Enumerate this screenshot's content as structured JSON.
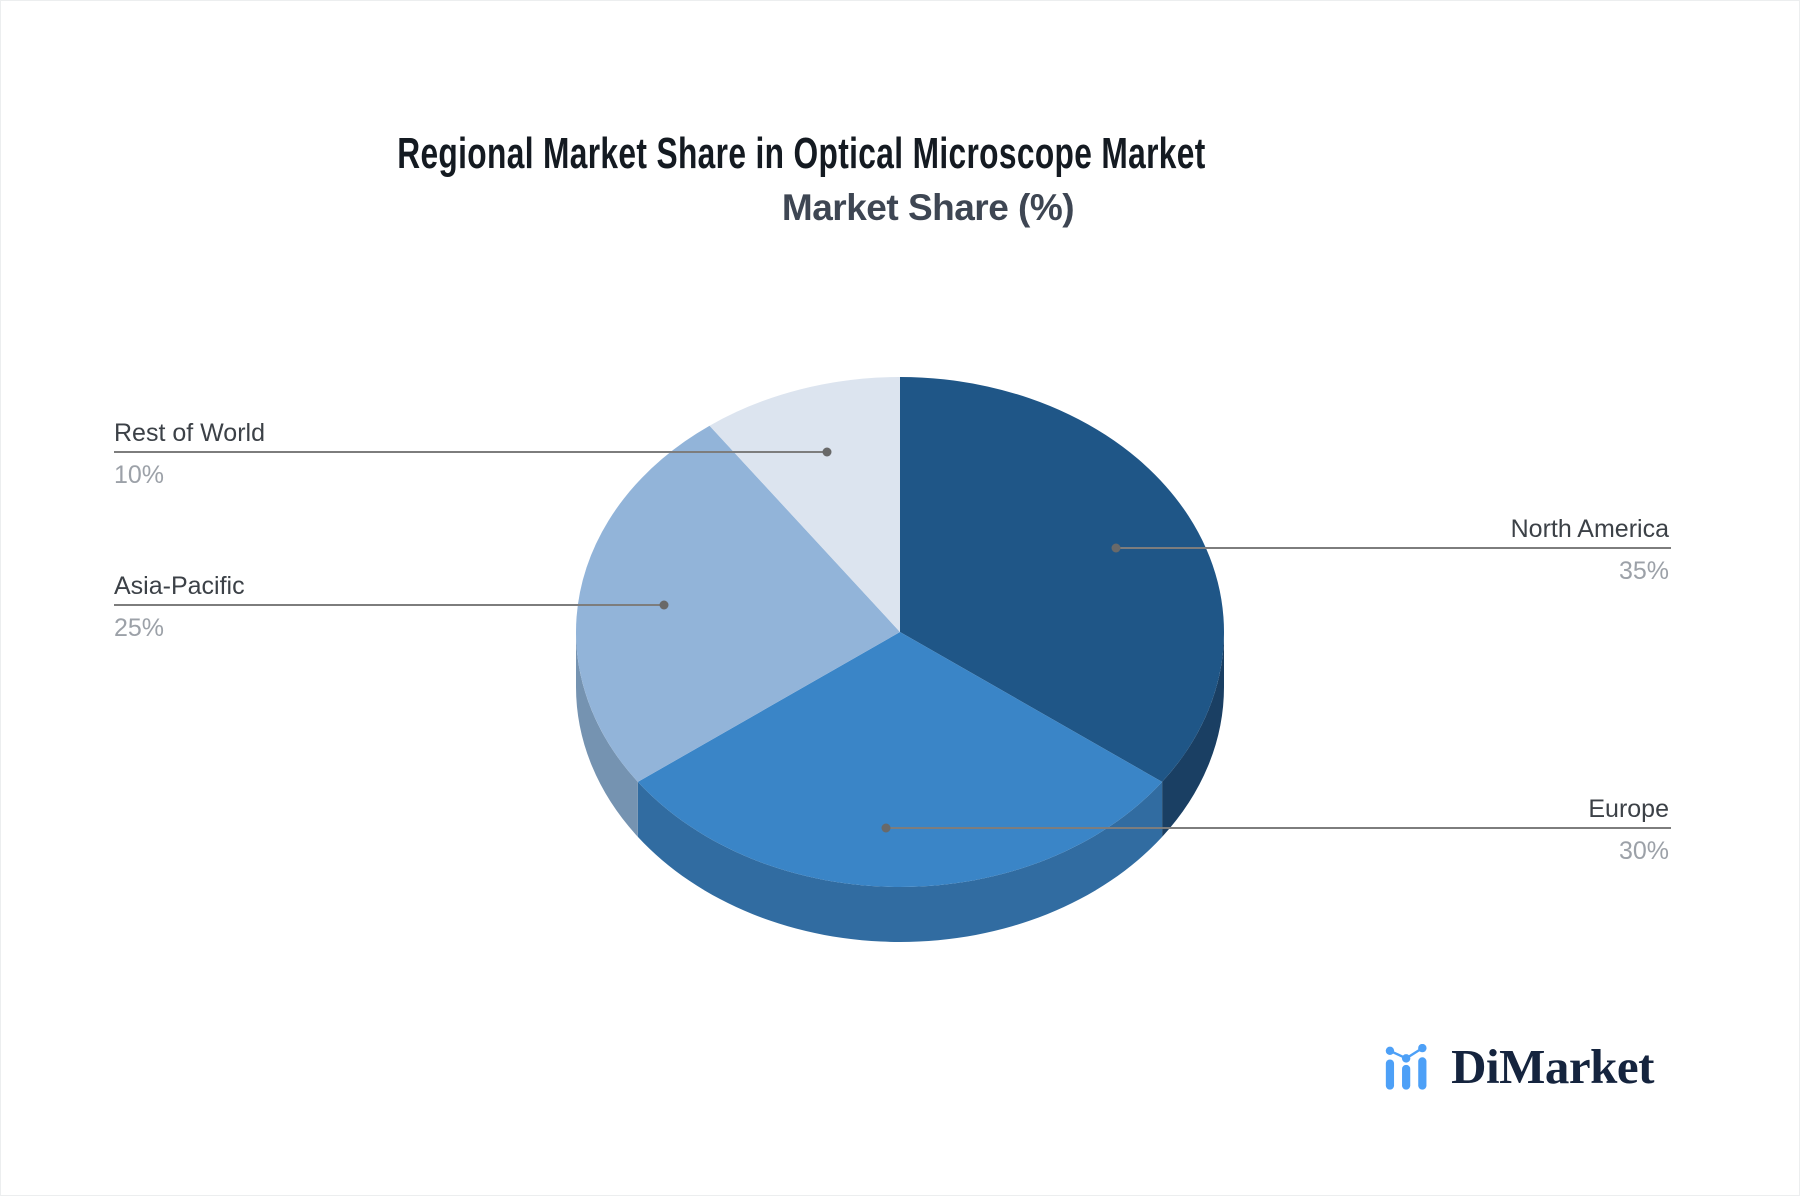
{
  "chart_data": {
    "type": "pie",
    "style": "3d",
    "title": "Regional Market Share in Optical Microscope Market",
    "subtitle": "Market Share (%)",
    "unit": "%",
    "start_angle_deg": 0,
    "direction": "clockwise",
    "legend_position": "callout-labels",
    "slices": [
      {
        "label": "North America",
        "value": 35,
        "pct_label": "35%",
        "color": "#1F5687",
        "side_color": "#1A3F63"
      },
      {
        "label": "Europe",
        "value": 30,
        "pct_label": "30%",
        "color": "#3A85C7",
        "side_color": "#316CA1"
      },
      {
        "label": "Asia-Pacific",
        "value": 25,
        "pct_label": "25%",
        "color": "#92B4D9",
        "side_color": "#7593B1"
      },
      {
        "label": "Rest of World",
        "value": 10,
        "pct_label": "10%",
        "color": "#DCE4EF",
        "side_color": "#B9C6D8"
      }
    ],
    "callout_style": {
      "label_color": "#3C4147",
      "value_color": "#9CA1A8",
      "line_color": "#7D7D7D",
      "dot_color": "#696969"
    },
    "title_color": "#141A21",
    "subtitle_color": "#3E4653"
  },
  "branding": {
    "name": "DiMarket",
    "icon": "bar-line-chart-icon",
    "text_color": "#15243E",
    "icon_color": "#4DA0F7"
  }
}
